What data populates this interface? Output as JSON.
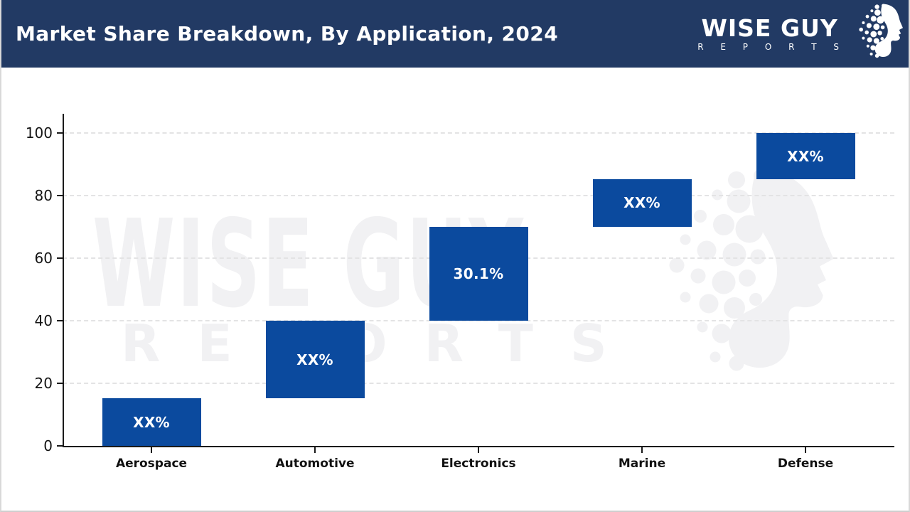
{
  "header": {
    "title": "Market Share Breakdown, By Application, 2024",
    "bg_color": "#223a64",
    "logo": {
      "line1": "WISE GUY",
      "line2": "R E P O R T S"
    }
  },
  "watermark": {
    "line1": "WISE GUY",
    "line2": "REPORTS"
  },
  "chart_data": {
    "type": "bar",
    "subtype": "waterfall",
    "title": "Market Share Breakdown, By Application, 2024",
    "categories": [
      "Aerospace",
      "Automotive",
      "Electronics",
      "Marine",
      "Defense"
    ],
    "segments": [
      {
        "category": "Aerospace",
        "start": 0,
        "end": 15.2,
        "label": "XX%"
      },
      {
        "category": "Automotive",
        "start": 15.2,
        "end": 40.0,
        "label": "XX%"
      },
      {
        "category": "Electronics",
        "start": 40.0,
        "end": 70.1,
        "label": "30.1%"
      },
      {
        "category": "Marine",
        "start": 70.1,
        "end": 85.2,
        "label": "XX%"
      },
      {
        "category": "Defense",
        "start": 85.2,
        "end": 100.0,
        "label": "XX%"
      }
    ],
    "yticks": [
      0,
      20,
      40,
      60,
      80,
      100
    ],
    "ylim": [
      0,
      106
    ],
    "xlabel": "",
    "ylabel": "",
    "grid": "horizontal-dashed",
    "legend": "none",
    "colors": {
      "bar": "#0b4a9e",
      "bar_label": "#ffffff",
      "axis": "#1a1a1a",
      "grid": "#e3e3e4",
      "watermark": "#f1f1f3"
    }
  }
}
